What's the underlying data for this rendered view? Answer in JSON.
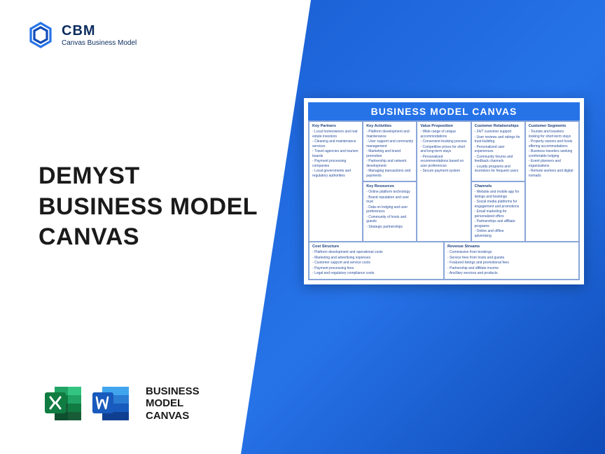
{
  "colors": {
    "blue_gradient_start": "#1a5fd4",
    "blue_gradient_end": "#0f4bb8",
    "header_blue": "#2673e8",
    "text_dark": "#1a1a1a",
    "canvas_text": "#2a4f9e",
    "border": "#8aa6d8",
    "excel_green": "#107c41",
    "word_blue": "#185abd"
  },
  "logo": {
    "brand": "CBM",
    "tagline": "Canvas Business Model"
  },
  "title": {
    "line1": "DEMYST",
    "line2": "BUSINESS MODEL",
    "line3": "CANVAS"
  },
  "footer": {
    "line1": "BUSINESS",
    "line2": "MODEL",
    "line3": "CANVAS"
  },
  "canvas": {
    "header": "BUSINESS MODEL CANVAS",
    "cells": {
      "kp": {
        "title": "Key Partners",
        "items": [
          "Local homeowners and real estate investors",
          "Cleaning and maintenance services",
          "Travel agencies and tourism boards",
          "Payment processing companies",
          "Local governments and regulatory authorities"
        ]
      },
      "ka": {
        "title": "Key Activities",
        "items": [
          "Platform development and maintenance",
          "User support and community management",
          "Marketing and brand promotion",
          "Partnership and network development",
          "Managing transactions and payments"
        ]
      },
      "kr": {
        "title": "Key Resources",
        "items": [
          "Online platform technology",
          "Brand reputation and user trust",
          "Data on lodging and user preferences",
          "Community of hosts and guests",
          "Strategic partnerships"
        ]
      },
      "vp": {
        "title": "Value Proposition",
        "items": [
          "Wide range of unique accommodations",
          "Convenient booking process",
          "Competitive prices for short and long-term stays",
          "Personalized recommendations based on user preferences",
          "Secure payment system"
        ]
      },
      "cr": {
        "title": "Customer Relationships",
        "items": [
          "24/7 customer support",
          "User reviews and ratings for trust-building",
          "Personalized user experiences",
          "Community forums and feedback channels",
          "Loyalty programs and incentives for frequent users"
        ]
      },
      "ch": {
        "title": "Channels",
        "items": [
          "Website and mobile app for listings and bookings",
          "Social media platforms for engagement and promotions",
          "Email marketing for personalized offers",
          "Partnerships and affiliate programs",
          "Online and offline advertising"
        ]
      },
      "cs": {
        "title": "Customer Segments",
        "items": [
          "Tourists and travelers looking for short-term stays",
          "Property owners and hosts offering accommodations",
          "Business travelers seeking comfortable lodging",
          "Event planners and organizations",
          "Remote workers and digital nomads"
        ]
      },
      "cost": {
        "title": "Cost Structure",
        "items": [
          "Platform development and operational costs",
          "Marketing and advertising expenses",
          "Customer support and service costs",
          "Payment processing fees",
          "Legal and regulatory compliance costs"
        ]
      },
      "rev": {
        "title": "Revenue Streams",
        "items": [
          "Commission from bookings",
          "Service fees from hosts and guests",
          "Featured listings and promotional fees",
          "Partnership and affiliate income",
          "Ancillary services and products"
        ]
      }
    }
  }
}
